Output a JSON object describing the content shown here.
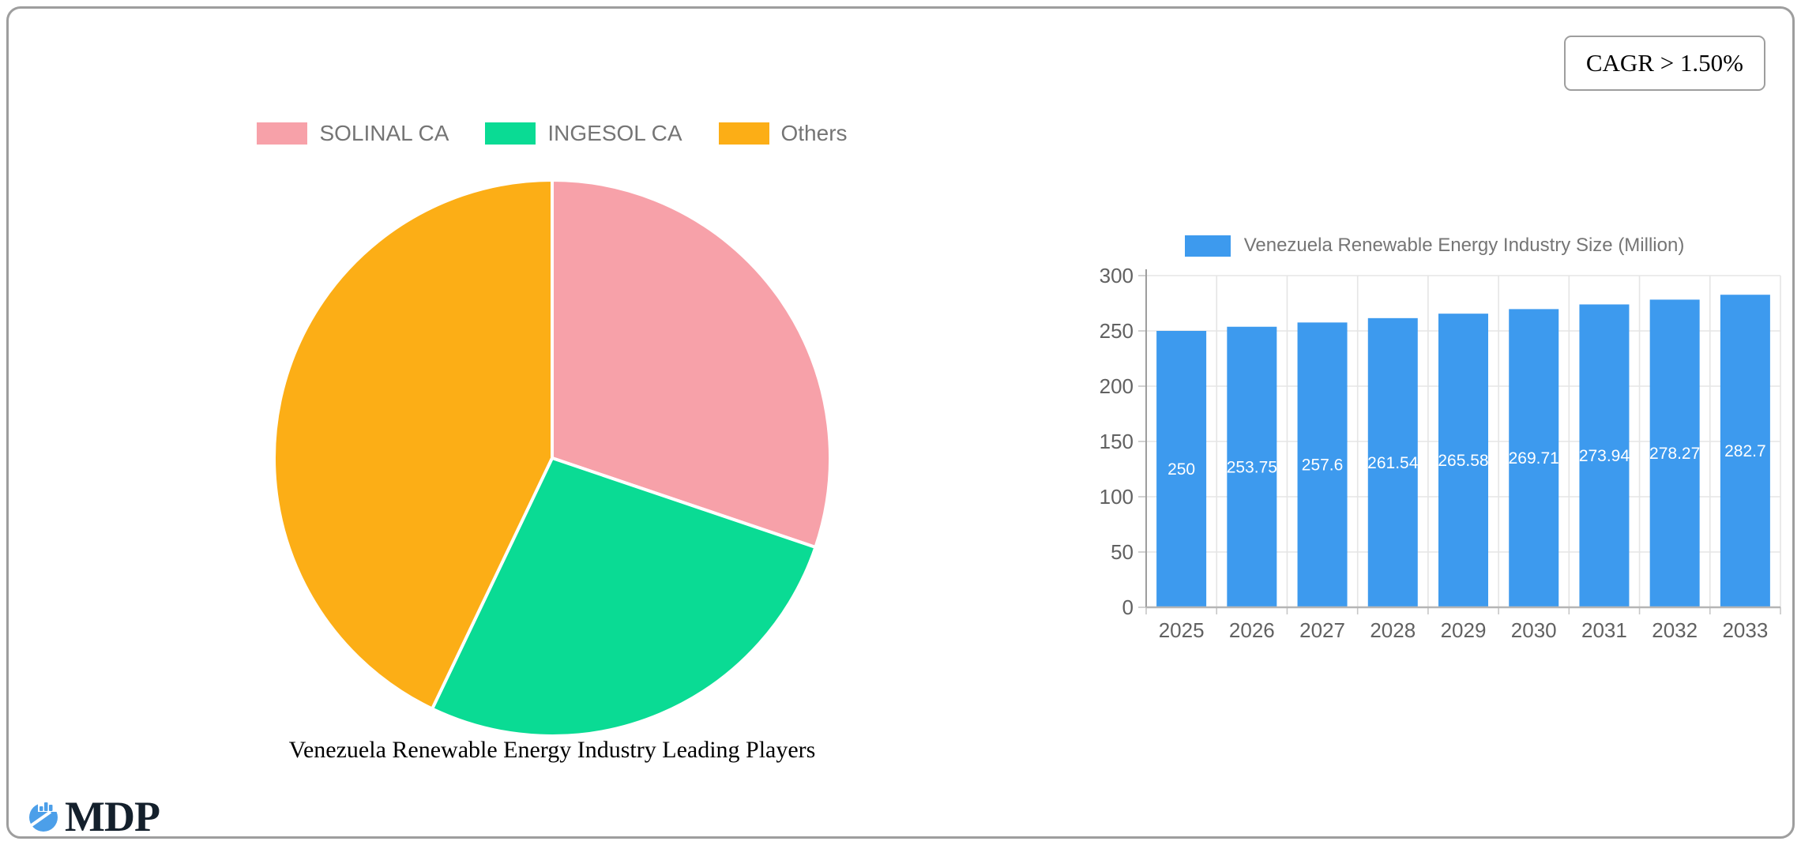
{
  "cagr_badge": {
    "text": "CAGR > 1.50%"
  },
  "logo": {
    "text": "MDP",
    "icon": "pie-bars-logo-icon",
    "icon_color": "#4c9fe9"
  },
  "colors": {
    "pie_pink": "#f7a1a9",
    "pie_green": "#0adb94",
    "pie_orange": "#fcae16",
    "bar_blue": "#3d9aee",
    "legend_text": "#757575",
    "axis_text": "#616161",
    "grid_line": "#e5e5e5",
    "axis_line": "#9e9e9e",
    "frame_border": "#9e9e9e"
  },
  "chart_data": [
    {
      "type": "pie",
      "title": "Venezuela Renewable Energy Industry Leading Players",
      "labels": [
        "SOLINAL CA",
        "INGESOL CA",
        "Others"
      ],
      "values_percent": [
        30.2,
        26.9,
        42.9
      ],
      "colors": [
        "#f7a1a9",
        "#0adb94",
        "#fcae16"
      ],
      "start_angle_deg": -90,
      "direction": "clockwise",
      "legend_position": "top",
      "slice_gap_color": "#ffffff"
    },
    {
      "type": "bar",
      "legend_label": "Venezuela Renewable Energy Industry Size (Million)",
      "categories": [
        "2025",
        "2026",
        "2027",
        "2028",
        "2029",
        "2030",
        "2031",
        "2032",
        "2033"
      ],
      "values": [
        250,
        253.75,
        257.6,
        261.54,
        265.58,
        269.71,
        273.94,
        278.27,
        282.7
      ],
      "value_labels": [
        "250",
        "253.75",
        "257.6",
        "261.54",
        "265.58",
        "269.71",
        "273.94",
        "278.27",
        "282.7"
      ],
      "bar_color": "#3d9aee",
      "value_label_color": "#ffffff",
      "xlabel": "",
      "ylabel": "",
      "ylim": [
        0,
        300
      ],
      "y_ticks": [
        0,
        50,
        100,
        150,
        200,
        250,
        300
      ],
      "grid": true,
      "legend_position": "top"
    }
  ]
}
